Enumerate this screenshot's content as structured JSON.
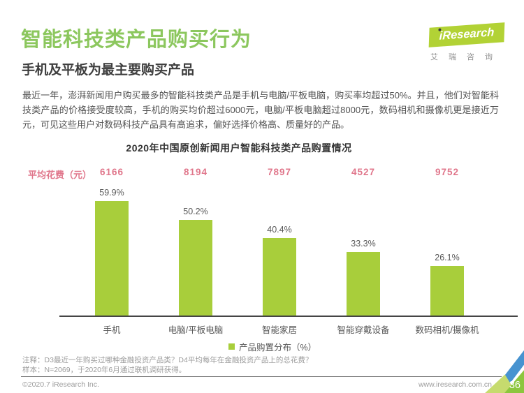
{
  "page": {
    "title": "智能科技类产品购买行为",
    "subtitle": "手机及平板为最主要购买产品",
    "body_text": "最近一年，澎湃新闻用户购买最多的智能科技类产品是手机与电脑/平板电脑，购买率均超过50%。并且，他们对智能科技类产品的价格接受度较高，手机的购买均价超过6000元，电脑/平板电脑超过8000元，数码相机和摄像机更是接近万元，可见这些用户对数码科技产品具有高追求，偏好选择价格高、质量好的产品。"
  },
  "logo": {
    "brand": "iResearch",
    "brand_cn": "艾瑞咨询"
  },
  "chart": {
    "title": "2020年中国原创新闻用户智能科技类产品购置情况",
    "avg_label": "平均花费（元）",
    "avg_values": [
      "6166",
      "8194",
      "7897",
      "4527",
      "9752"
    ],
    "percent_labels": [
      "59.9%",
      "50.2%",
      "40.4%",
      "33.3%",
      "26.1%"
    ],
    "categories": [
      "手机",
      "电脑/平板电脑",
      "智能家居",
      "智能穿戴设备",
      "数码相机/摄像机"
    ],
    "legend": "产品购置分布（%）"
  },
  "chart_data": {
    "type": "bar",
    "title": "2020年中国原创新闻用户智能科技类产品购置情况",
    "categories": [
      "手机",
      "电脑/平板电脑",
      "智能家居",
      "智能穿戴设备",
      "数码相机/摄像机"
    ],
    "series": [
      {
        "name": "产品购置分布（%）",
        "values": [
          59.9,
          50.2,
          40.4,
          33.3,
          26.1
        ]
      },
      {
        "name": "平均花费（元）",
        "values": [
          6166,
          8194,
          7897,
          4527,
          9752
        ]
      }
    ],
    "ylabel": "产品购置分布（%）",
    "ylim": [
      0,
      65
    ],
    "grid": false,
    "legend_position": "bottom"
  },
  "footer": {
    "note1": "注释：D3最近一年购买过哪种金融投资产品类？D4平均每年在金融投资产品上的总花费？",
    "note2": "样本：N=2069，于2020年6月通过联机调研获得。",
    "copyright": "©2020.7 iResearch Inc.",
    "website": "www.iresearch.com.cn",
    "page_number": "36"
  },
  "colors": {
    "title_green": "#8cc75e",
    "bar_green": "#a8ce3b",
    "logo_green": "#b2d235",
    "pink": "#e0768b",
    "blue": "#4793d0",
    "corner_green": "#8cc63e",
    "corner_light_green": "#c6db6e"
  }
}
